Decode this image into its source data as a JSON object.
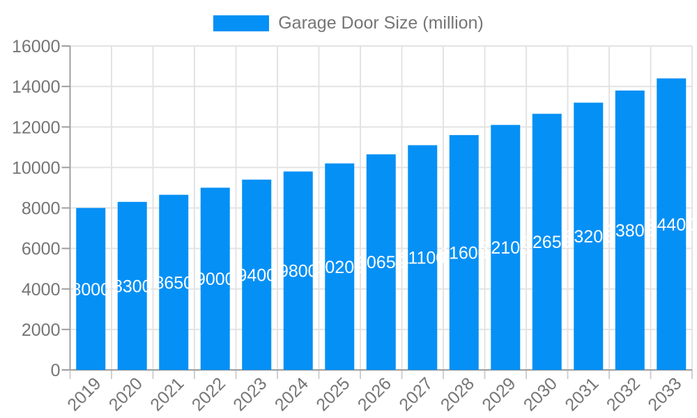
{
  "legend": {
    "label": "Garage Door Size (million)",
    "position": "top"
  },
  "colors": {
    "bar": "#0590F5",
    "gridline": "#E3E3E3",
    "axis": "#9E9E9E",
    "minor_tick": "#CFCFCF",
    "axis_text": "#757575",
    "data_label": "#FFFFFF",
    "background": "#FFFFFF"
  },
  "chart_data": {
    "type": "bar",
    "title": "Garage Door Size (million)",
    "series_name": "Garage Door Size (million)",
    "xlabel": "",
    "ylabel": "",
    "categories": [
      "2019",
      "2020",
      "2021",
      "2022",
      "2023",
      "2024",
      "2025",
      "2026",
      "2027",
      "2028",
      "2029",
      "2030",
      "2031",
      "2032",
      "2033"
    ],
    "values": [
      8000,
      8300,
      8650,
      9000,
      9400,
      9800,
      10200,
      10650,
      11100,
      11600,
      12100,
      12650,
      13200,
      13800,
      14400
    ],
    "data_labels_visible": true,
    "yticks": [
      0,
      2000,
      4000,
      6000,
      8000,
      10000,
      12000,
      14000,
      16000
    ],
    "ylim": [
      0,
      16000
    ],
    "grid": true,
    "legend_position": "top",
    "x_label_rotation_deg": -45
  }
}
